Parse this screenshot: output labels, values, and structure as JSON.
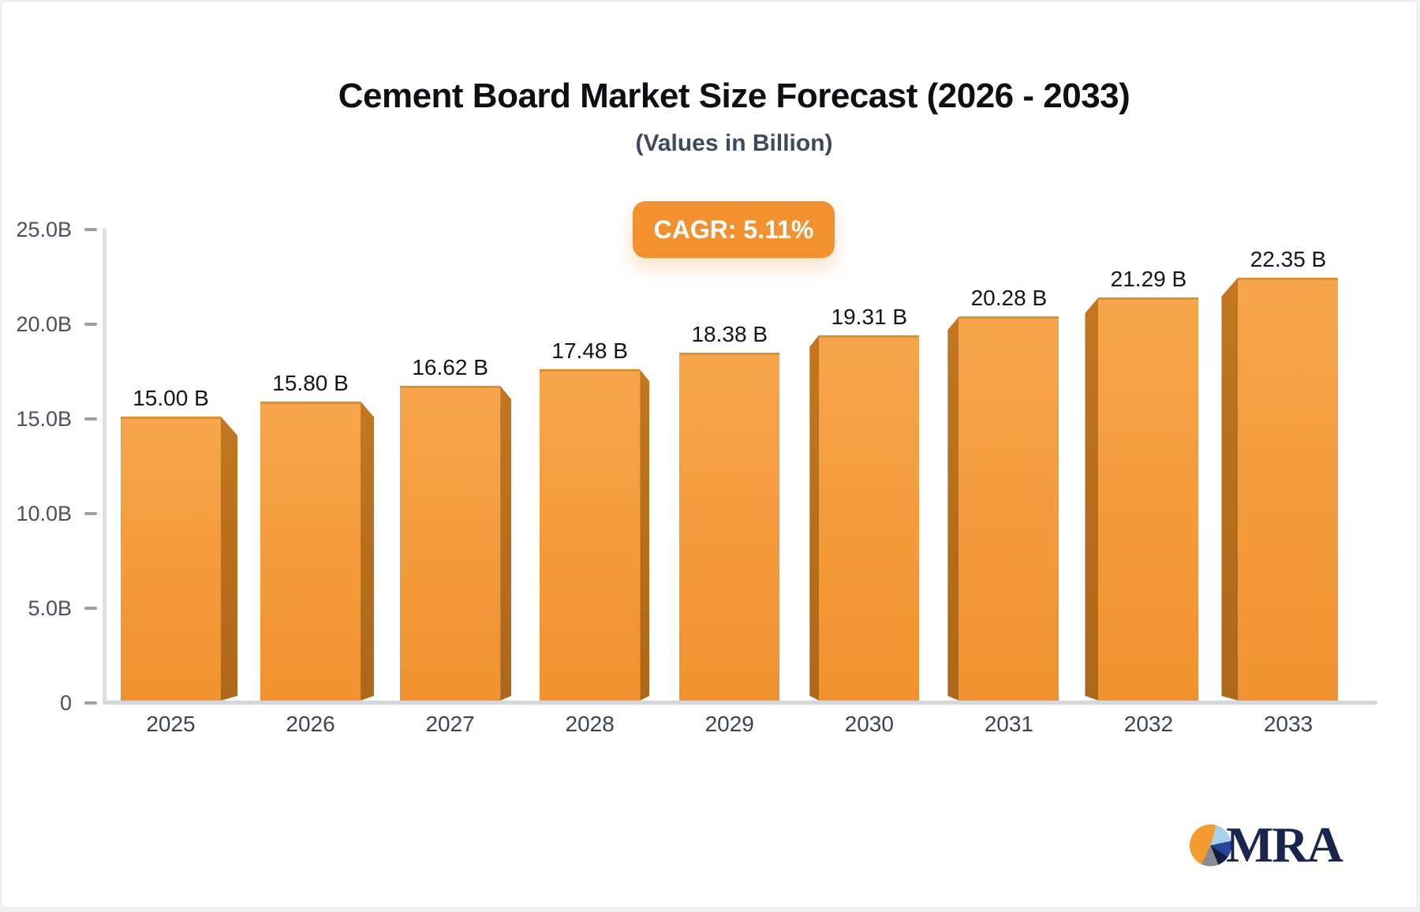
{
  "header": {
    "title": "Cement Board Market Size Forecast (2026 - 2033)",
    "subtitle": "(Values in Billion)",
    "cagr_badge": "CAGR: 5.11%"
  },
  "chart_data": {
    "type": "bar",
    "title": "Cement Board Market Size Forecast (2026 - 2033)",
    "subtitle": "(Values in Billion)",
    "annotation": "CAGR: 5.11%",
    "categories": [
      "2025",
      "2026",
      "2027",
      "2028",
      "2029",
      "2030",
      "2031",
      "2032",
      "2033"
    ],
    "values": [
      15.0,
      15.8,
      16.62,
      17.48,
      18.38,
      19.31,
      20.28,
      21.29,
      22.35
    ],
    "value_labels": [
      "15.00 B",
      "15.80 B",
      "16.62 B",
      "17.48 B",
      "18.38 B",
      "19.31 B",
      "20.28 B",
      "21.29 B",
      "22.35 B"
    ],
    "xlabel": "",
    "ylabel": "",
    "ylim": [
      0,
      25
    ],
    "y_ticks": [
      0,
      5,
      10,
      15,
      20,
      25
    ],
    "y_tick_labels": [
      "0",
      "5.0B",
      "10.0B",
      "15.0B",
      "20.0B",
      "25.0B"
    ],
    "unit": "Billion",
    "grid": false,
    "legend": "none",
    "bar_face_color_top": "#F7A54C",
    "bar_face_color_bottom": "#F0922F",
    "bar_side_color": "#B9701E"
  },
  "colors": {
    "badge_background": "#F2912D",
    "badge_text": "#FFFFFF",
    "title_text": "#0E0F12",
    "subtitle_text": "#3E4A5C",
    "axis_line": "#D3D6DB",
    "tick_text": "#4A515C"
  },
  "logo": {
    "text": "MRA"
  }
}
